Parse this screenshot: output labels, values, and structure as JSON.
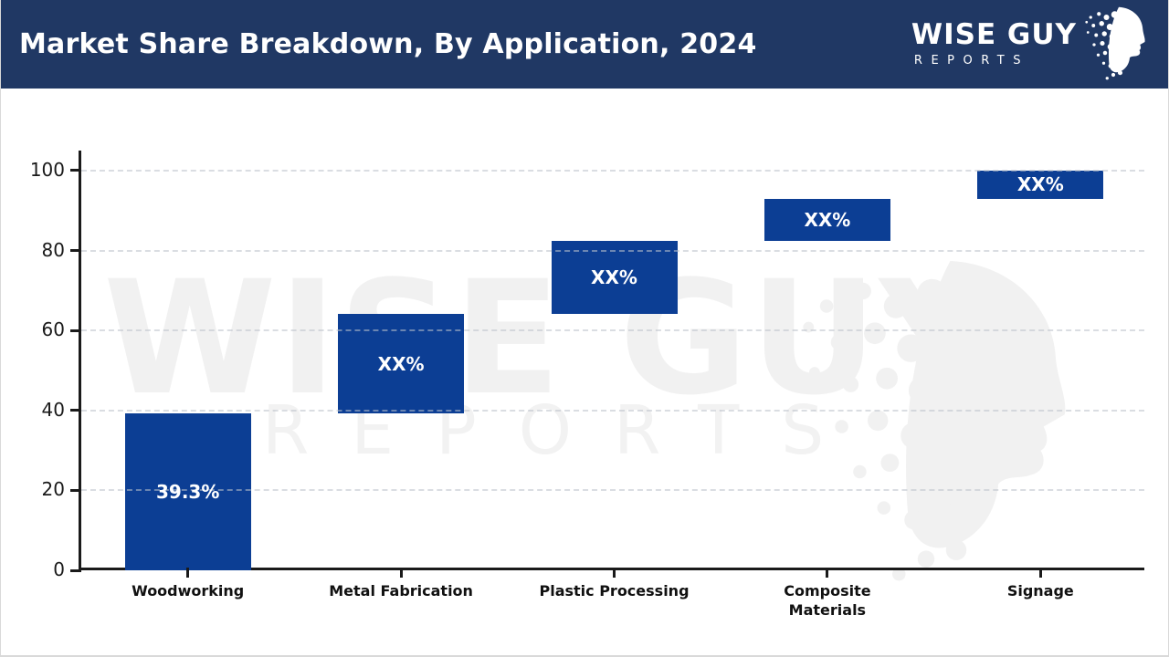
{
  "header": {
    "title": "Market Share Breakdown, By Application, 2024",
    "logo": {
      "wordmark": "WISE GUY",
      "subtitle": "REPORTS"
    }
  },
  "watermark": {
    "wordmark": "WISE GUY",
    "subtitle": "REPORTS"
  },
  "chart_data": {
    "type": "bar",
    "subtype": "waterfall-floating-bars",
    "title": "Market Share Breakdown, By Application, 2024",
    "categories": [
      "Woodworking",
      "Metal Fabrication",
      "Plastic Processing",
      "Composite Materials",
      "Signage"
    ],
    "tick_labels": [
      "Woodworking",
      "Metal Fabrication",
      "Plastic Processing",
      "Composite\nMaterials",
      "Signage"
    ],
    "bars": [
      {
        "category": "Woodworking",
        "start": 0,
        "end": 39.3,
        "label": "39.3%"
      },
      {
        "category": "Metal Fabrication",
        "start": 39.3,
        "end": 64.1,
        "label": "XX%"
      },
      {
        "category": "Plastic Processing",
        "start": 64.1,
        "end": 82.4,
        "label": "XX%"
      },
      {
        "category": "Composite Materials",
        "start": 82.4,
        "end": 92.9,
        "label": "XX%"
      },
      {
        "category": "Signage",
        "start": 92.9,
        "end": 100,
        "label": "XX%"
      }
    ],
    "xlabel": "",
    "ylabel": "",
    "yticks": [
      0,
      20,
      40,
      60,
      80,
      100
    ],
    "ylim": [
      0,
      105
    ],
    "grid": "horizontal-dashed",
    "legend": "none",
    "bar_color": "#0c3e94",
    "bar_label_color": "#ffffff"
  },
  "colors": {
    "header_bg": "#203864",
    "bar": "#0c3e94",
    "axis": "#1a1a1a",
    "grid": "#dcdcdc",
    "watermark": "#f1f1f1",
    "page_border": "#d9d9d9"
  }
}
